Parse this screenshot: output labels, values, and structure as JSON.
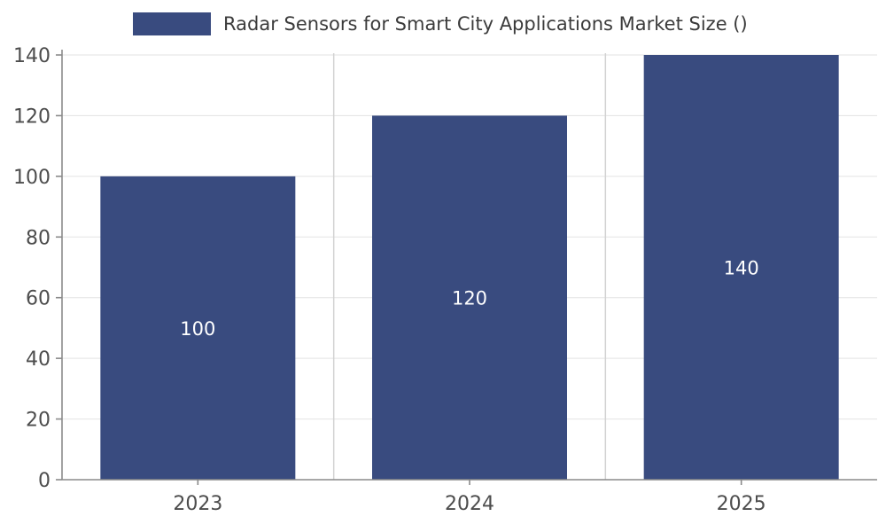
{
  "chart_data": {
    "type": "bar",
    "title": "Radar Sensors for Smart City Applications Market Size ()",
    "categories": [
      "2023",
      "2024",
      "2025"
    ],
    "values": [
      100,
      120,
      140
    ],
    "bar_labels": [
      "100",
      "120",
      "140"
    ],
    "xlabel": "",
    "ylabel": "",
    "ylim": [
      0,
      140
    ],
    "yticks": [
      0,
      20,
      40,
      60,
      80,
      100,
      120,
      140
    ],
    "legend": [
      {
        "label": "Radar Sensors for Smart City Applications Market Size ()",
        "color": "#394B7F"
      }
    ],
    "legend_position": "top",
    "grid": "on"
  },
  "colors": {
    "bar": "#394B7F",
    "bar_label": "#ffffff",
    "grid_line": "#e3e3e3",
    "boundary_line": "#d2d2d2",
    "axis_line": "#8a8a8a",
    "tick_label": "#4d4d4d",
    "title_text": "#3b3b3b"
  }
}
